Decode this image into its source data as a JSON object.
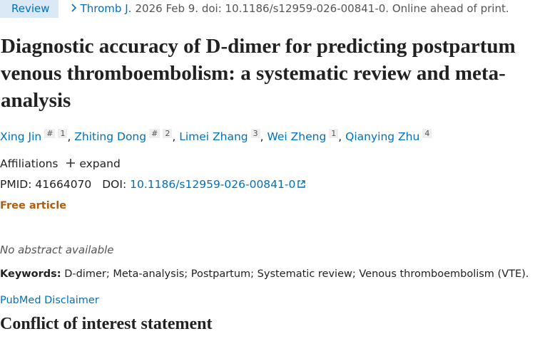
{
  "header": {
    "tag": "Review",
    "journal": "Thromb J.",
    "citation": "2026 Feb 9. doi: 10.1186/s12959-026-00841-0. Online ahead of print."
  },
  "title": "Diagnostic accuracy of D-dimer for predicting postpartum venous thromboembolism: a systematic review and meta-analysis",
  "authors": [
    {
      "name": "Xing Jin",
      "sup": [
        "#",
        "1"
      ]
    },
    {
      "name": "Zhiting Dong",
      "sup": [
        "#",
        "2"
      ]
    },
    {
      "name": "Limei Zhang",
      "sup": [
        "3"
      ]
    },
    {
      "name": "Wei Zheng",
      "sup": [
        "1"
      ]
    },
    {
      "name": "Qianying Zhu",
      "sup": [
        "4"
      ]
    }
  ],
  "affiliations": {
    "label": "Affiliations",
    "toggle": "expand"
  },
  "identifiers": {
    "pmid_label": "PMID:",
    "pmid": "41664070",
    "doi_label": "DOI:",
    "doi": "10.1186/s12959-026-00841-0"
  },
  "free_article": "Free article",
  "abstract": "No abstract available",
  "keywords": {
    "label": "Keywords:",
    "text": "D-dimer; Meta-analysis; Postpartum; Systematic review; Venous thromboembolism (VTE)."
  },
  "disclaimer": "PubMed Disclaimer",
  "section_heading": "Conflict of interest statement"
}
